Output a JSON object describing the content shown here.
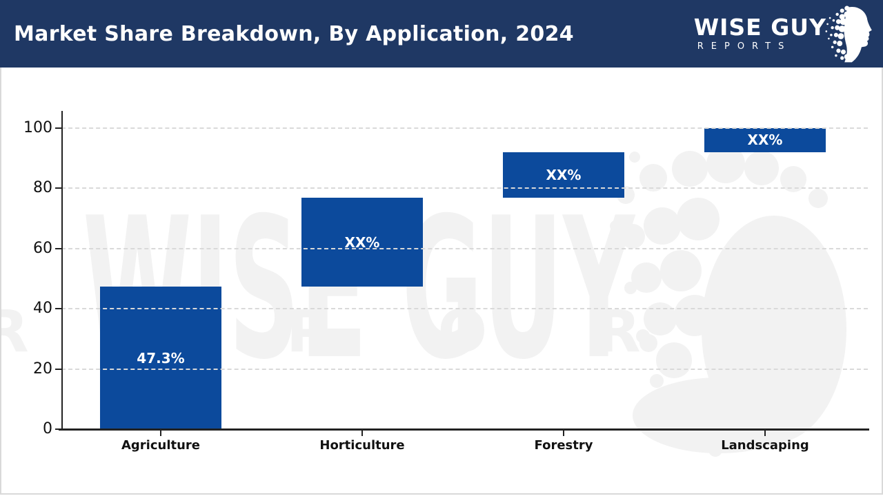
{
  "header": {
    "title": "Market Share Breakdown, By Application, 2024",
    "logo": {
      "name": "WISE GUY",
      "tagline": "REPORTS"
    }
  },
  "watermark": {
    "line1": "WISE GUY",
    "line2": "REPORTS"
  },
  "colors": {
    "header_bg": "#1f3864",
    "header_text": "#ffffff",
    "bar": "#0c4a9c",
    "bar_label": "#ffffff",
    "axis": "#222222",
    "grid": "#d9d9d9",
    "frame": "#d9d9d9",
    "watermark": "#f2f2f2",
    "background": "#ffffff"
  },
  "chart_data": {
    "type": "bar",
    "subtype": "waterfall",
    "title": "Market Share Breakdown, By Application, 2024",
    "categories": [
      "Agriculture",
      "Horticulture",
      "Forestry",
      "Landscaping"
    ],
    "segments": [
      {
        "category": "Agriculture",
        "start": 0,
        "end": 47.3,
        "label": "47.3%"
      },
      {
        "category": "Horticulture",
        "start": 47.3,
        "end": 76.7,
        "label": "XX%"
      },
      {
        "category": "Forestry",
        "start": 76.7,
        "end": 91.9,
        "label": "XX%"
      },
      {
        "category": "Landscaping",
        "start": 91.9,
        "end": 100,
        "label": "XX%"
      }
    ],
    "yticks": [
      0,
      20,
      40,
      60,
      80,
      100
    ],
    "ylim": [
      0,
      105
    ],
    "xlabel": "",
    "ylabel": "",
    "grid": "horizontal-dashed-drawn-above-bars",
    "legend": "none"
  }
}
